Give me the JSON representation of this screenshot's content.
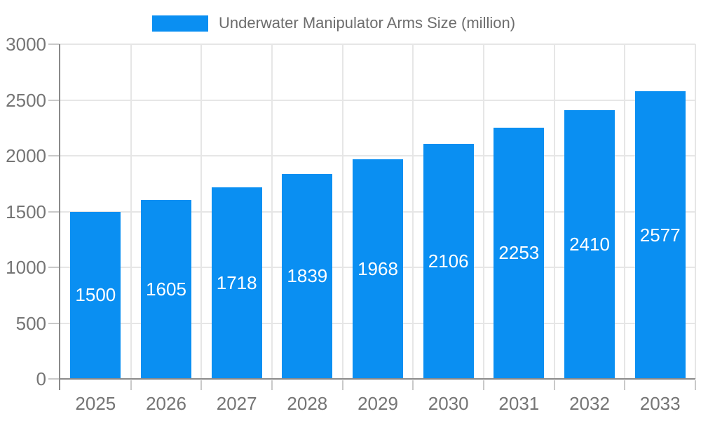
{
  "colors": {
    "bar": "#0a8ff2",
    "grid": "#e6e6e6",
    "axis": "#8a8a8a",
    "tick": "#c9c9c9",
    "axis_label": "#757575",
    "legend_text": "#6d6d6d",
    "bar_value_text": "#ffffff",
    "background": "#ffffff"
  },
  "chart_data": {
    "type": "bar",
    "title": "Underwater Manipulator Arms Size (million)",
    "categories": [
      "2025",
      "2026",
      "2027",
      "2028",
      "2029",
      "2030",
      "2031",
      "2032",
      "2033"
    ],
    "values": [
      1500,
      1605,
      1718,
      1839,
      1968,
      2106,
      2253,
      2410,
      2577
    ],
    "xlabel": "",
    "ylabel": "",
    "ylim": [
      0,
      3000
    ],
    "ytick_step": 500,
    "ytick_labels": [
      "0",
      "500",
      "1000",
      "1500",
      "2000",
      "2500",
      "3000"
    ],
    "grid": true,
    "legend_position": "top",
    "value_labels": "inside-center"
  }
}
